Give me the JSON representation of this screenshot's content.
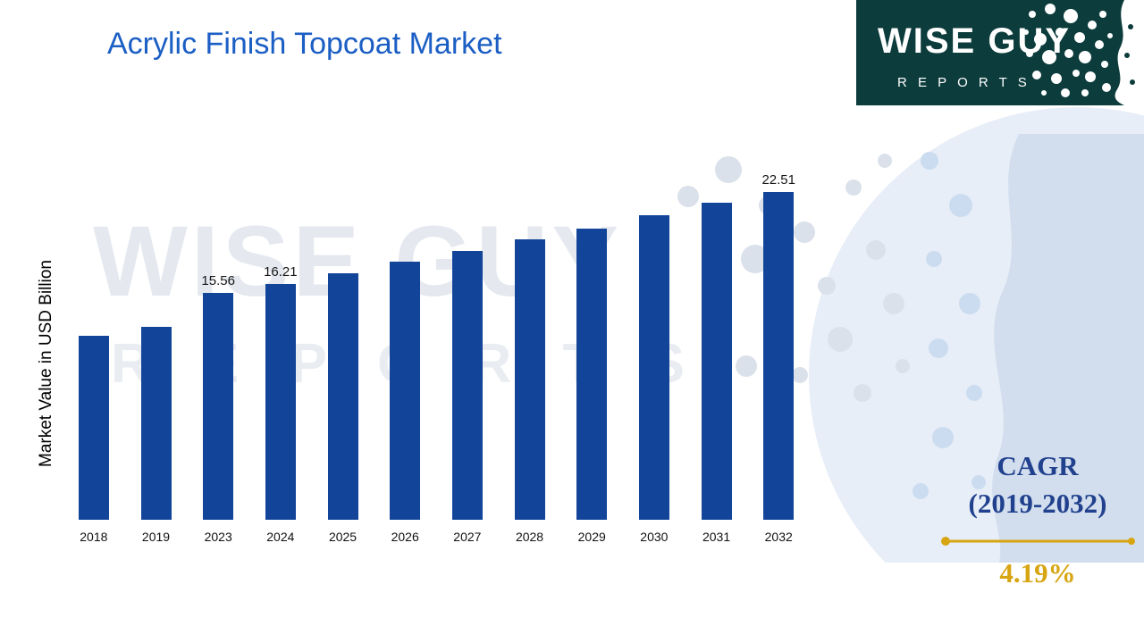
{
  "title": "Acrylic Finish Topcoat Market",
  "brand": {
    "name": "WISE GUY",
    "sub": "R E P O R T S"
  },
  "watermark": {
    "line1": "WISE GUY",
    "line2": "R E P O R T S"
  },
  "cagr": {
    "label": "CAGR",
    "range": "(2019-2032)",
    "value": "4.19%"
  },
  "colors": {
    "title_blue": "#1b5ec4",
    "bar_blue": "#12459a",
    "brand_teal": "#0d3c3c",
    "gold": "#d7a512",
    "cagr_blue": "#21418e"
  },
  "chart_data": {
    "type": "bar",
    "title": "Acrylic Finish Topcoat Market",
    "xlabel": "",
    "ylabel": "Market Value in USD Billion",
    "categories": [
      "2018",
      "2019",
      "2023",
      "2024",
      "2025",
      "2026",
      "2027",
      "2028",
      "2029",
      "2030",
      "2031",
      "2032"
    ],
    "values": [
      12.64,
      13.25,
      15.56,
      16.21,
      16.93,
      17.73,
      18.47,
      19.26,
      20.0,
      20.92,
      21.78,
      22.51
    ],
    "data_labels": {
      "2023": "15.56",
      "2024": "16.21",
      "2032": "22.51"
    },
    "ylim": [
      0,
      25
    ],
    "grid": false,
    "legend": false,
    "bar_color": "#12459a"
  }
}
